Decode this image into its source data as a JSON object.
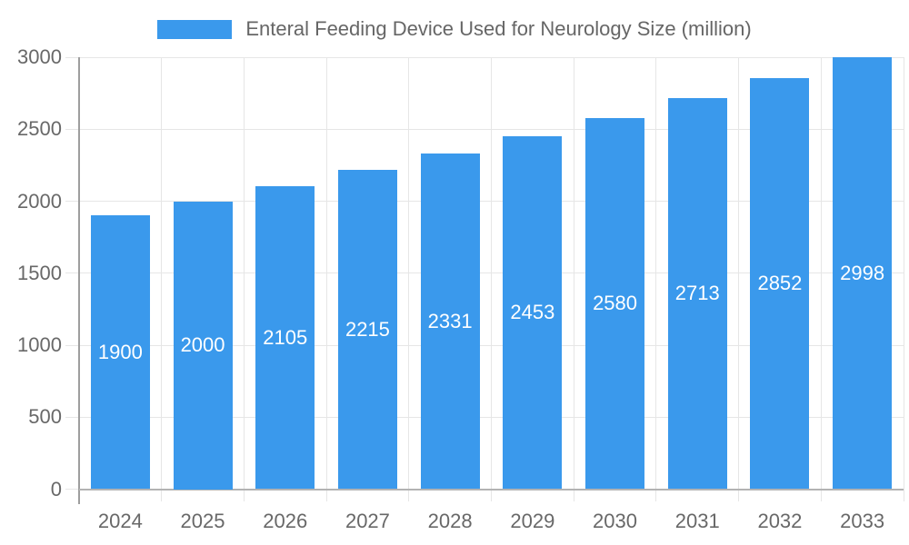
{
  "chart_data": {
    "type": "bar",
    "title": "Enteral Feeding Device Used for Neurology Size (million)",
    "legend": [
      "Enteral Feeding Device Used for Neurology Size (million)"
    ],
    "legend_position": "top",
    "categories": [
      "2024",
      "2025",
      "2026",
      "2027",
      "2028",
      "2029",
      "2030",
      "2031",
      "2032",
      "2033"
    ],
    "series": [
      {
        "name": "Enteral Feeding Device Used for Neurology Size (million)",
        "values": [
          1900,
          2000,
          2105,
          2215,
          2331,
          2453,
          2580,
          2713,
          2852,
          2998
        ]
      }
    ],
    "data_labels": [
      "1900",
      "2000",
      "2105",
      "2215",
      "2331",
      "2453",
      "2580",
      "2713",
      "2852",
      "2998"
    ],
    "xlabel": "",
    "ylabel": "",
    "ylim": [
      0,
      3000
    ],
    "yticks": [
      0,
      500,
      1000,
      1500,
      2000,
      2500,
      3000
    ],
    "grid": true,
    "colors": {
      "bar": "#3A99EC",
      "bar_label_text": "#ffffff",
      "legend_text": "#666666",
      "tick_text": "#686868",
      "gridline": "#e6e6e6",
      "axis_line": "#9e9e9e",
      "baseline": "#b3b3b3",
      "background": "#ffffff"
    }
  }
}
